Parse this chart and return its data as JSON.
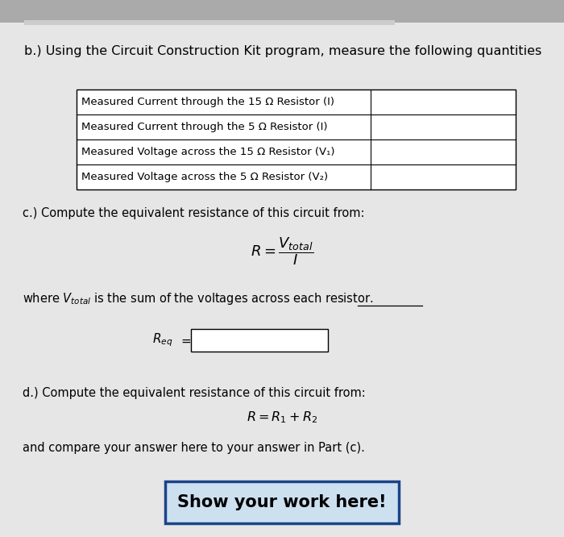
{
  "bg_color": "#e6e6e6",
  "title_bar_color": "#aaaaaa",
  "title_text": "b.) Using the Circuit Construction Kit program, measure the following quantities",
  "table_rows": [
    "Measured Current through the 15 Ω Resistor (I)",
    "Measured Current through the 5 Ω Resistor (I)",
    "Measured Voltage across the 15 Ω Resistor (V₁)",
    "Measured Voltage across the 5 Ω Resistor (V₂)"
  ],
  "section_c_line1": "c.) Compute the equivalent resistance of this circuit from:",
  "section_d_line1": "d.) Compute the equivalent resistance of this circuit from:",
  "section_d_compare": "and compare your answer here to your answer in Part (c).",
  "show_work_text": "Show your work here!",
  "show_work_bg": "#cce0f0",
  "show_work_border": "#1a4488",
  "font_size_title": 11.5,
  "font_size_body": 10.5,
  "font_size_table": 9.5,
  "font_size_show_work": 15
}
